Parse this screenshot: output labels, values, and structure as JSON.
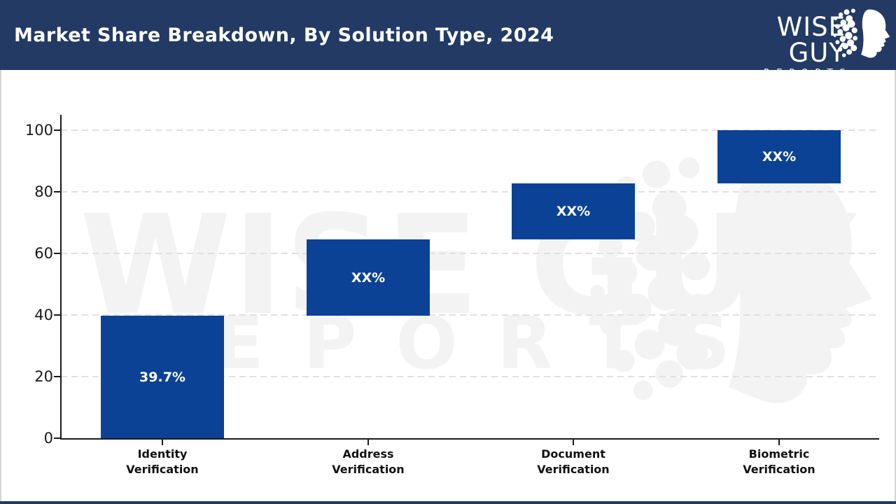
{
  "header": {
    "title": "Market Share Breakdown, By Solution Type, 2024",
    "logo": {
      "line1": "WISE GUY",
      "line2": "REPORTS"
    }
  },
  "watermark": {
    "line1": "WISE GUY",
    "line2": "REPORTS"
  },
  "footer": {},
  "chart_data": {
    "type": "bar",
    "subtype": "waterfall",
    "title": "Market Share Breakdown, By Solution Type, 2024",
    "categories": [
      "Identity\nVerification",
      "Address\nVerification",
      "Document\nVerification",
      "Biometric\nVerification"
    ],
    "segments": [
      {
        "category": "Identity Verification",
        "start": 0,
        "end": 39.7,
        "label": "39.7%"
      },
      {
        "category": "Address Verification",
        "start": 39.7,
        "end": 64.5,
        "label": "XX%"
      },
      {
        "category": "Document Verification",
        "start": 64.5,
        "end": 82.7,
        "label": "XX%"
      },
      {
        "category": "Biometric Verification",
        "start": 82.7,
        "end": 100,
        "label": "XX%"
      }
    ],
    "yticks": [
      0,
      20,
      40,
      60,
      80,
      100
    ],
    "ylim": [
      0,
      100
    ],
    "xlabel": "",
    "ylabel": "",
    "grid": "dashed-horizontal",
    "legend": "none",
    "bar_color": "#0B4295",
    "bar_label_color": "#ffffff",
    "axis_color": "#1a1a1a",
    "grid_color": "#e0e0e0"
  },
  "colors": {
    "header_bg": "#223A64",
    "footer_bg": "#223A64",
    "watermark": "#f3f3f3",
    "page_bg": "#ffffff"
  }
}
